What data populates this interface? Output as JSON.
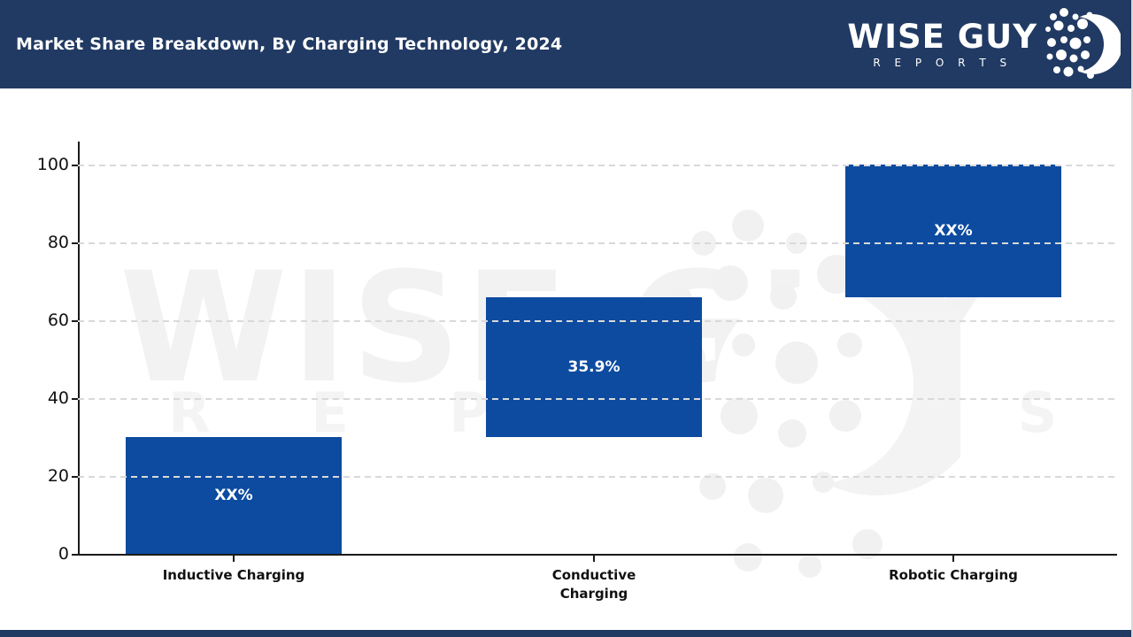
{
  "header": {
    "title": "Market Share Breakdown, By Charging Technology, 2024",
    "logo_line1": "WISE GUY",
    "logo_line2": "R E P O R T S"
  },
  "watermark": {
    "line1": "WISE GUY",
    "line2": "R E P O R T S"
  },
  "colors": {
    "header_bg": "#213A63",
    "footer_bg": "#213A63",
    "bar": "#0C4BA0",
    "grid": "#D9D9D9",
    "axis": "#1A1A1A",
    "bar_label": "#FFFFFF",
    "watermark": "#F2F2F2"
  },
  "chart_data": {
    "type": "bar",
    "subtype": "waterfall",
    "title": "Market Share Breakdown, By Charging Technology, 2024",
    "categories": [
      "Inductive Charging",
      "Conductive\nCharging",
      "Robotic Charging"
    ],
    "segments": [
      {
        "category": "Inductive Charging",
        "label": "XX%",
        "start": 0,
        "end": 30.0
      },
      {
        "category": "Conductive Charging",
        "label": "35.9%",
        "start": 30.0,
        "end": 65.9
      },
      {
        "category": "Robotic Charging",
        "label": "XX%",
        "start": 65.9,
        "end": 100
      }
    ],
    "ylim": [
      0,
      100
    ],
    "yticks": [
      0,
      20,
      40,
      60,
      80,
      100
    ],
    "xlabel": "",
    "ylabel": "",
    "grid": "horizontal-dashed",
    "legend": "none",
    "bar_color": "#0C4BA0",
    "label_color": "#FFFFFF"
  }
}
